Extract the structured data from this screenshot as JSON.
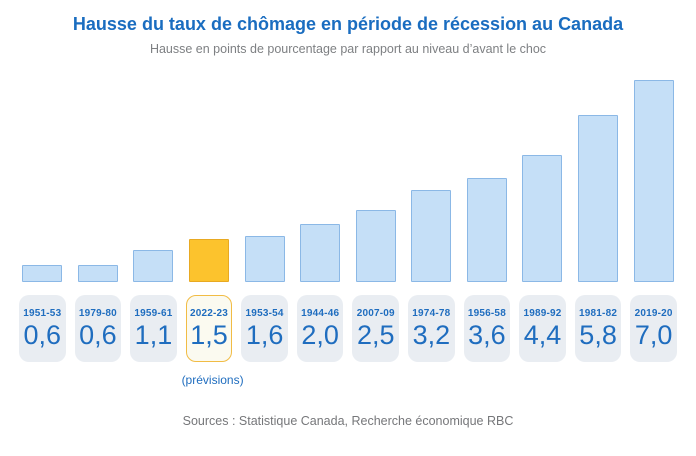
{
  "header": {
    "title": "Hausse du taux de chômage en période de récession au Canada",
    "subtitle": "Hausse en points de pourcentage par rapport au niveau d’avant le choc"
  },
  "chart_data": {
    "type": "bar",
    "title": "Hausse du taux de chômage en période de récession au Canada",
    "subtitle": "Hausse en points de pourcentage par rapport au niveau d’avant le choc",
    "categories": [
      "1951-53",
      "1979-80",
      "1959-61",
      "2022-23",
      "1953-54",
      "1944-46",
      "2007-09",
      "1974-78",
      "1956-58",
      "1989-92",
      "1981-82",
      "2019-20"
    ],
    "values": [
      0.6,
      0.6,
      1.1,
      1.5,
      1.6,
      2.0,
      2.5,
      3.2,
      3.6,
      4.4,
      5.8,
      7.0
    ],
    "value_labels": [
      "0,6",
      "0,6",
      "1,1",
      "1,5",
      "1,6",
      "2,0",
      "2,5",
      "3,2",
      "3,6",
      "4,4",
      "5,8",
      "7,0"
    ],
    "highlight_index": 3,
    "highlight_note": "(prévisions)",
    "xlabel": "",
    "ylabel": "Hausse en points de pourcentage",
    "ylim": [
      0,
      7
    ],
    "grid": false,
    "legend": "none"
  },
  "footer": {
    "sources": "Sources : Statistique Canada, Recherche économique RBC"
  },
  "colors": {
    "title_blue": "#1a6dc0",
    "label_blue": "#1f6dbf",
    "bar_fill": "#c5dff7",
    "bar_border": "#8bb8e6",
    "highlight_fill": "#fcc32d",
    "highlight_border": "#e8a922",
    "box_bg": "#e9edf2",
    "highlight_box_bg": "#fbfaf0",
    "highlight_box_border": "#f1bc45",
    "subtitle_gray": "#7e8083",
    "source_gray": "#76777a"
  }
}
